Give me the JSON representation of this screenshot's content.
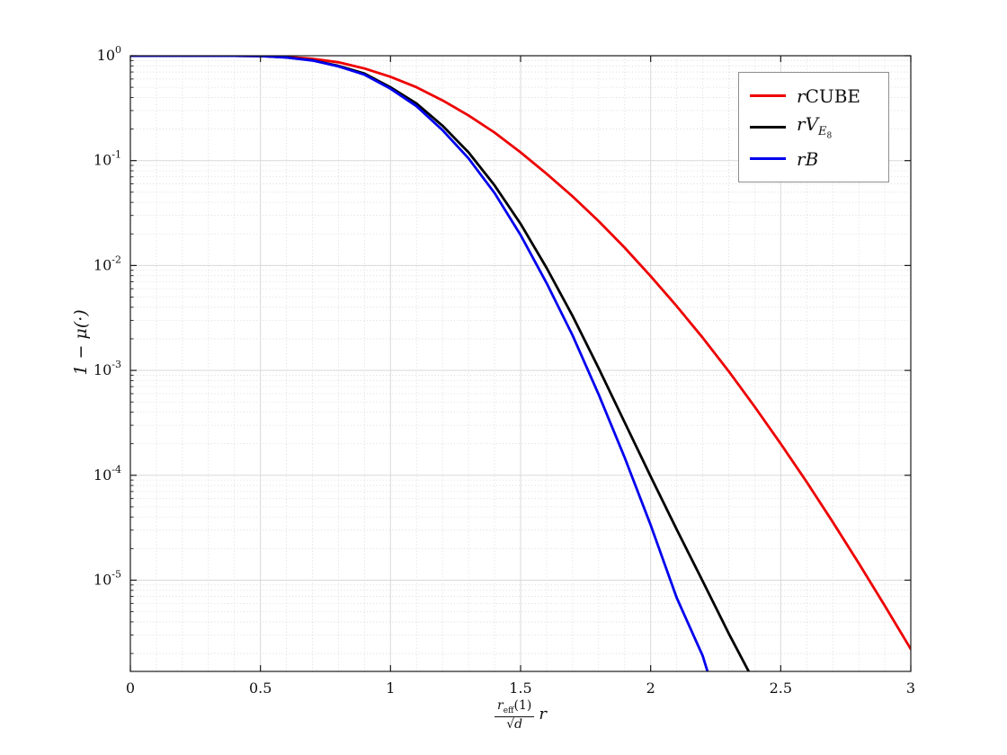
{
  "chart_data": {
    "type": "line",
    "title": "",
    "ylabel": "1 − μ(·)",
    "xlabel": {
      "numerator_base": "r",
      "numerator_sub": "eff",
      "numerator_arg": "(1)",
      "denominator_root": "√",
      "denominator_var": "d",
      "suffix": "r"
    },
    "xlim": [
      0,
      3
    ],
    "ylim_log10": [
      -5.87,
      0
    ],
    "x_ticks": [
      0,
      0.5,
      1,
      1.5,
      2,
      2.5,
      3
    ],
    "x_tick_labels": [
      "0",
      "0.5",
      "1",
      "1.5",
      "2",
      "2.5",
      "3"
    ],
    "y_tick_base": "10",
    "y_tick_exponents": [
      0,
      -1,
      -2,
      -3,
      -4,
      -5
    ],
    "x_minor_step": 0.1,
    "grid": true,
    "legend_position": "top-right",
    "series": [
      {
        "name": "rCUBE",
        "color": "#ee0000",
        "x": [
          0,
          0.1,
          0.2,
          0.3,
          0.4,
          0.5,
          0.6,
          0.7,
          0.8,
          0.9,
          1,
          1.1,
          1.2,
          1.3,
          1.4,
          1.5,
          1.6,
          1.7,
          1.8,
          1.9,
          2,
          2.1,
          2.2,
          2.3,
          2.4,
          2.5,
          2.6,
          2.7,
          2.8,
          2.9,
          3
        ],
        "y": [
          1.0,
          1.0,
          1.0,
          1.0,
          0.999,
          0.995,
          0.975,
          0.935,
          0.865,
          0.755,
          0.63,
          0.5,
          0.375,
          0.27,
          0.185,
          0.12,
          0.075,
          0.0455,
          0.0265,
          0.0148,
          0.0079,
          0.0041,
          0.00205,
          0.00098,
          0.00045,
          0.0002,
          8.6e-05,
          3.58e-05,
          1.45e-05,
          5.7e-06,
          2.2e-06
        ]
      },
      {
        "name": "rV_E8",
        "color": "#000000",
        "x": [
          0,
          0.1,
          0.2,
          0.3,
          0.4,
          0.5,
          0.6,
          0.7,
          0.8,
          0.9,
          1,
          1.1,
          1.2,
          1.3,
          1.4,
          1.5,
          1.6,
          1.7,
          1.8,
          1.9,
          2,
          2.1,
          2.2,
          2.3,
          2.4
        ],
        "y": [
          1.0,
          1.0,
          1.0,
          1.0,
          0.999,
          0.993,
          0.965,
          0.905,
          0.8,
          0.675,
          0.5,
          0.35,
          0.215,
          0.12,
          0.058,
          0.025,
          0.0095,
          0.0033,
          0.00105,
          0.00032,
          9.75e-05,
          3.05e-05,
          9.8e-06,
          3.1e-06,
          1.05e-06
        ]
      },
      {
        "name": "rB",
        "color": "#0000ee",
        "x": [
          0,
          0.1,
          0.2,
          0.3,
          0.4,
          0.5,
          0.6,
          0.7,
          0.8,
          0.9,
          1,
          1.1,
          1.2,
          1.3,
          1.4,
          1.5,
          1.6,
          1.7,
          1.8,
          1.9,
          2,
          2.1,
          2.2,
          2.3
        ],
        "y": [
          1.0,
          1.0,
          1.0,
          1.0,
          0.999,
          0.993,
          0.962,
          0.9,
          0.79,
          0.66,
          0.485,
          0.33,
          0.195,
          0.105,
          0.049,
          0.0195,
          0.0068,
          0.00215,
          0.00059,
          0.000148,
          3.35e-05,
          6.8e-06,
          1.9e-06,
          3e-07
        ]
      }
    ]
  },
  "legend": {
    "items": [
      {
        "prefix": "r",
        "main": "CUBE",
        "main_style": "roman",
        "sub_main": "",
        "sub_sub": "",
        "color": "#ee0000"
      },
      {
        "prefix": "r",
        "main": "V",
        "main_style": "script",
        "sub_main": "E",
        "sub_sub": "8",
        "color": "#000000"
      },
      {
        "prefix": "r",
        "main": "B",
        "main_style": "script",
        "sub_main": "",
        "sub_sub": "",
        "color": "#0000ee"
      }
    ]
  },
  "colors": {
    "background": "#ffffff",
    "axis": "#1a1a1a",
    "grid_major": "#d9d9d9",
    "grid_minor": "#d4d4d4",
    "tick_text": "#111111"
  }
}
